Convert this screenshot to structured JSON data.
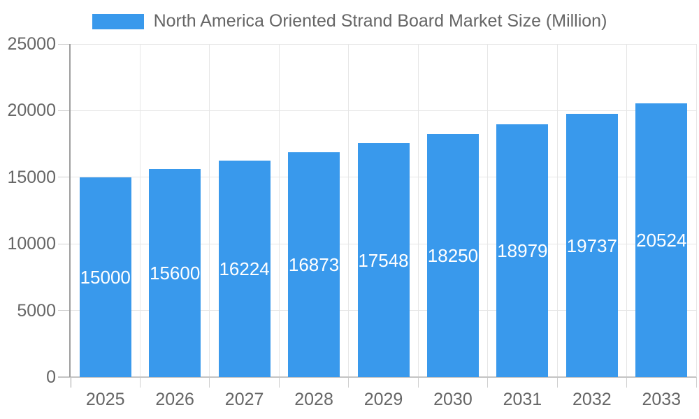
{
  "legend": {
    "label": "North America Oriented Strand Board Market Size (Million)"
  },
  "chart_data": {
    "type": "bar",
    "title": "North America Oriented Strand Board Market Size (Million)",
    "categories": [
      "2025",
      "2026",
      "2027",
      "2028",
      "2029",
      "2030",
      "2031",
      "2032",
      "2033"
    ],
    "values": [
      15000,
      15600,
      16224,
      16873,
      17548,
      18250,
      18979,
      19737,
      20524
    ],
    "series": [
      {
        "name": "North America Oriented Strand Board Market Size (Million)",
        "values": [
          15000,
          15600,
          16224,
          16873,
          17548,
          18250,
          18979,
          19737,
          20524
        ]
      }
    ],
    "xlabel": "",
    "ylabel": "",
    "ylim": [
      0,
      25000
    ],
    "yticks": [
      0,
      5000,
      10000,
      15000,
      20000,
      25000
    ],
    "grid": true,
    "legend_position": "top",
    "data_labels": "inside-center",
    "colors": {
      "bar": "#3999ec",
      "bar_label_text": "#ffffff",
      "axis_text": "#666666",
      "gridline": "#e6e6e6",
      "tick_mark": "#cfcfcf",
      "y_axis_line": "#9e9e9e",
      "x_axis_line": "#c4c4c4",
      "background": "#ffffff"
    }
  }
}
